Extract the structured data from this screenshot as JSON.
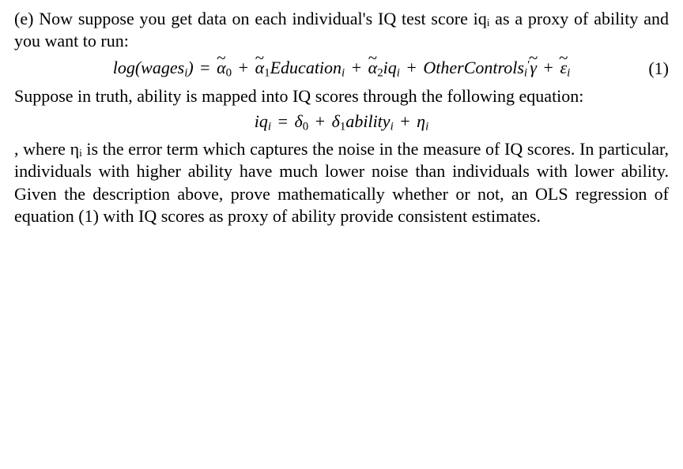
{
  "part_e": {
    "intro_text": "(e) Now suppose you get data on each individual's IQ test score iqᵢ as a proxy of ability and you want to run:",
    "equation1": {
      "lhs": "log(wages",
      "lhs_sub": "i",
      "lhs_close": ")",
      "a0": "α",
      "a0_sub": "0",
      "a1": "α",
      "a1_sub": "1",
      "edu": "Education",
      "edu_sub": "i",
      "a2": "α",
      "a2_sub": "2",
      "iq": "iq",
      "iq_sub": "i",
      "other": "OtherControls",
      "other_sub": "i",
      "other_sup": "′",
      "gamma": "γ",
      "eps": "ε",
      "eps_sub": "i",
      "number": "(1)"
    },
    "mid_text1": "Suppose in truth, ability is mapped into IQ scores through the following equation:",
    "equation2": {
      "iq": "iq",
      "iq_sub": "i",
      "d0": "δ",
      "d0_sub": "0",
      "d1": "δ",
      "d1_sub": "1",
      "ability": "ability",
      "ability_sub": "i",
      "eta": "η",
      "eta_sub": "i"
    },
    "tail_text": ", where ηᵢ is the error term which captures the noise in the measure of IQ scores. In particular, individuals with higher ability have much lower noise than individuals with lower ability. Given the description above, prove mathematically whether or not, an OLS regression of equation (1) with IQ scores as proxy of ability provide consistent estimates."
  }
}
